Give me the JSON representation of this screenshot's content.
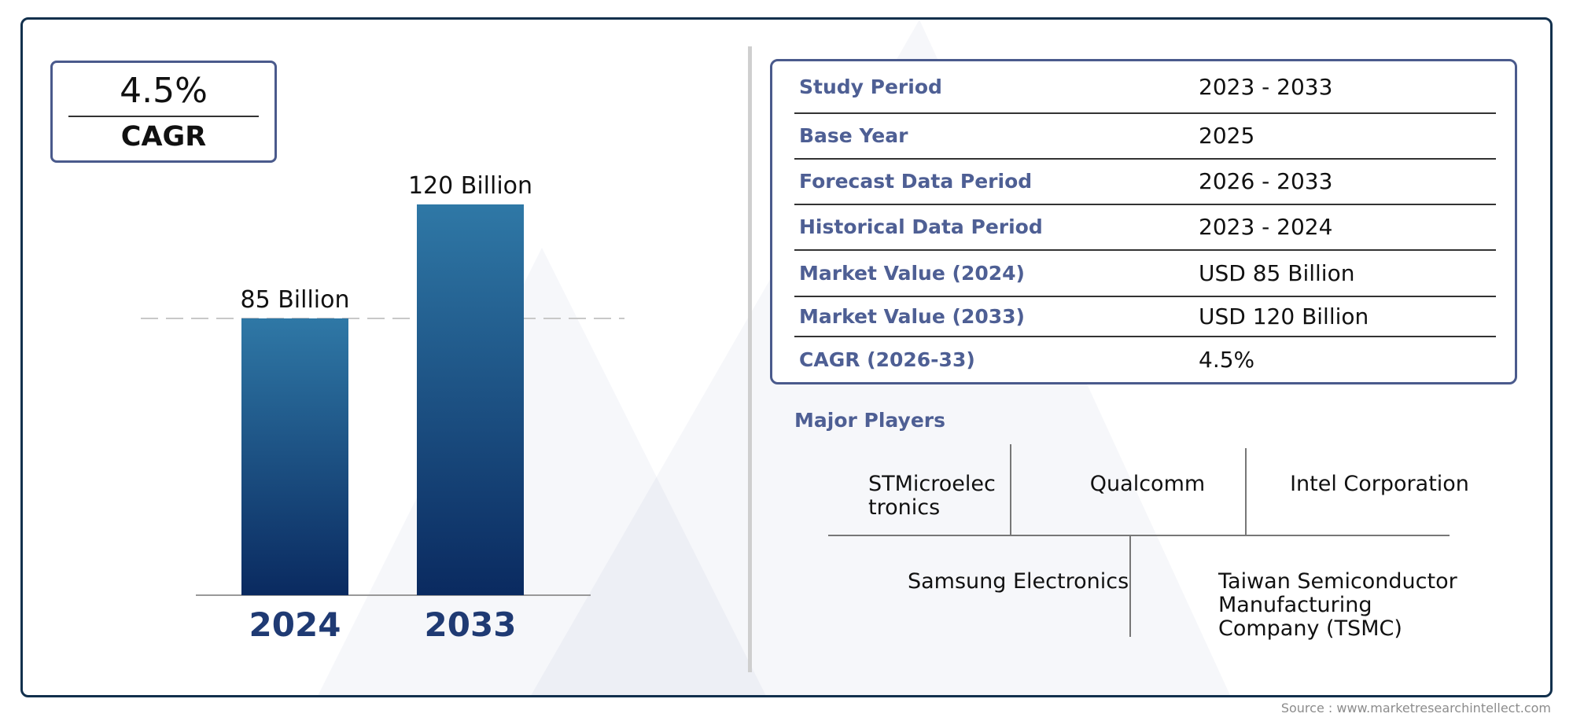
{
  "cagr_box": {
    "value": "4.5%",
    "label": "CAGR"
  },
  "chart_data": {
    "type": "bar",
    "categories": [
      "2024",
      "2033"
    ],
    "values": [
      85,
      120
    ],
    "value_labels": [
      "85 Billion",
      "120 Billion"
    ],
    "title": "",
    "xlabel": "",
    "ylabel": "",
    "ylim": [
      0,
      120
    ],
    "grid": false,
    "reference_line": {
      "style": "dashed",
      "y": 85
    },
    "colors": {
      "bar_top": "#2f78a6",
      "bar_bottom": "#0a2a60",
      "category_label": "#1f3a73"
    }
  },
  "info_table": {
    "rows": [
      {
        "key": "Study Period",
        "value": "2023 - 2033"
      },
      {
        "key": "Base Year",
        "value": "2025"
      },
      {
        "key": "Forecast Data Period",
        "value": "2026 - 2033"
      },
      {
        "key": "Historical Data Period",
        "value": "2023 - 2024"
      },
      {
        "key": "Market Value (2024)",
        "value": "USD 85 Billion"
      },
      {
        "key": "Market Value (2033)",
        "value": "USD 120 Billion"
      },
      {
        "key": "CAGR (2026-33)",
        "value": "4.5%"
      }
    ]
  },
  "major_players": {
    "heading": "Major Players",
    "players": [
      "STMicroelec tronics",
      "Qualcomm",
      "Intel Corporation",
      "Samsung Electronics",
      "Taiwan Semiconductor Manufacturing Company (TSMC)"
    ]
  },
  "source": "Source : www.marketresearchintellect.com",
  "colors": {
    "frame": "#12304d",
    "accent": "#4e5f94",
    "box_border": "#4a5a8c"
  }
}
